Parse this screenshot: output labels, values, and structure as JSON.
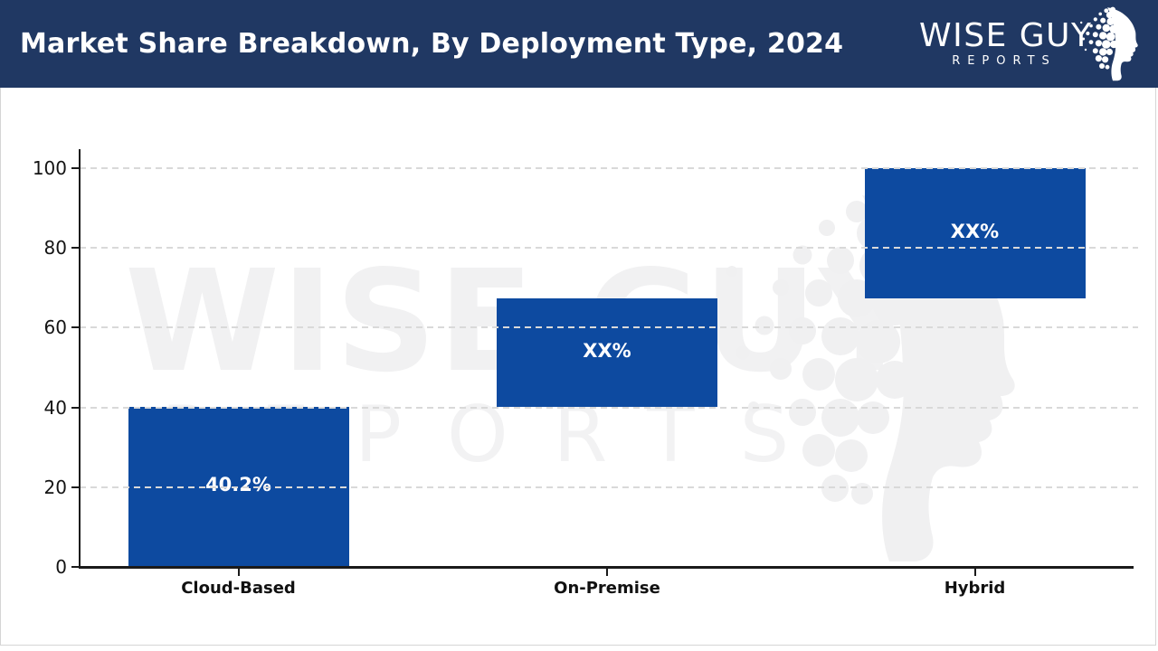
{
  "header": {
    "title": "Market Share Breakdown, By Deployment Type, 2024",
    "logo": {
      "name": "WISE GUY",
      "sub": "REPORTS"
    }
  },
  "watermark": {
    "name": "WISE GUY",
    "sub": "REPORTS"
  },
  "colors": {
    "header_bg": "#203863",
    "bar": "#0d4aa0",
    "grid": "#d9d9d9",
    "axis": "#1a1a1a",
    "bar_label": "#ffffff",
    "watermark": "#f1f1f2",
    "frame_border": "#d5d5d5"
  },
  "chart_data": {
    "type": "bar",
    "subtype": "waterfall",
    "title": "Market Share Breakdown, By Deployment Type, 2024",
    "categories": [
      "Cloud-Based",
      "On-Premise",
      "Hybrid"
    ],
    "segments": [
      {
        "category": "Cloud-Based",
        "start": 0,
        "end": 40.2,
        "label": "40.2%"
      },
      {
        "category": "On-Premise",
        "start": 40.2,
        "end": 67.3,
        "label": "XX%"
      },
      {
        "category": "Hybrid",
        "start": 67.3,
        "end": 100,
        "label": "XX%"
      }
    ],
    "y_ticks": [
      0,
      20,
      40,
      60,
      80,
      100
    ],
    "ylim": [
      0,
      105
    ],
    "xlabel": "",
    "ylabel": "",
    "grid": "horizontal-dashed",
    "legend": "none",
    "bar_color": "#0d4aa0"
  }
}
